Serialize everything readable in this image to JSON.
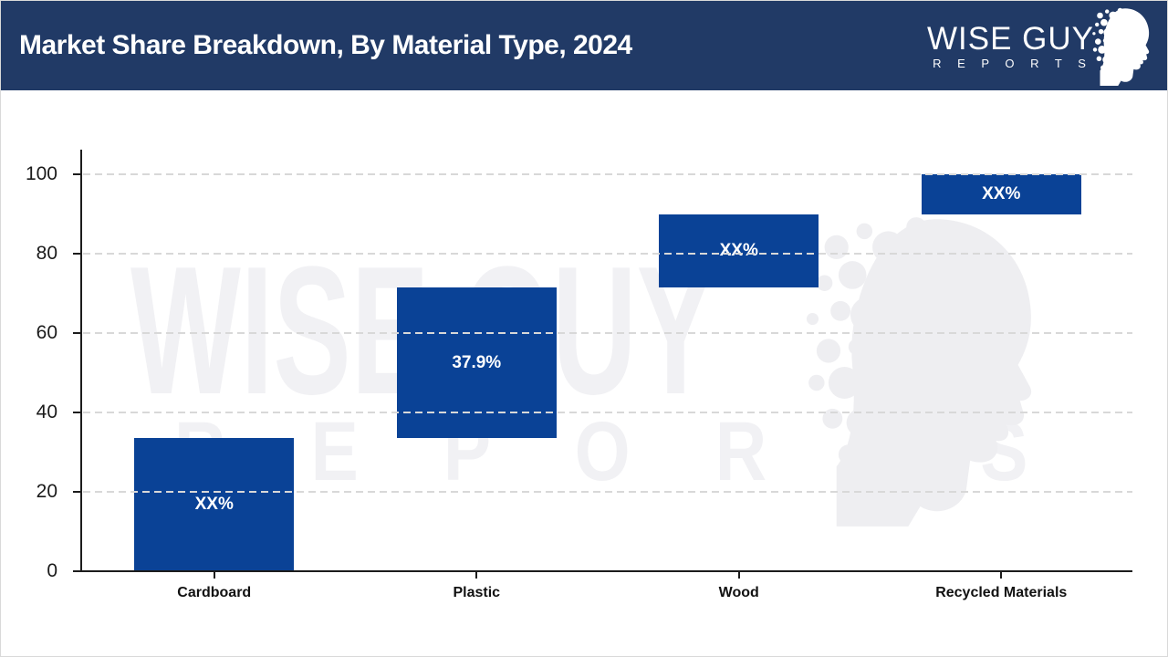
{
  "header": {
    "title": "Market Share Breakdown, By Material Type, 2024",
    "logo": {
      "line1": "WISE GUY",
      "line2": "R E P O R T S"
    }
  },
  "watermark": {
    "line1": "WISE GUY",
    "line2": "R E P O R T S"
  },
  "colors": {
    "header_bg": "#213a66",
    "bar": "#0a4296",
    "grid": "#d8d8d8",
    "axis": "#1c1c1c",
    "bar_label_text": "#ffffff",
    "watermark": "#f1f1f4",
    "watermark_face": "#eeeef1"
  },
  "chart_data": {
    "type": "bar",
    "subtype": "waterfall",
    "title": "Market Share Breakdown, By Material Type, 2024",
    "categories": [
      "Cardboard",
      "Plastic",
      "Wood",
      "Recycled Materials"
    ],
    "segments": [
      {
        "category": "Cardboard",
        "start": 0,
        "end": 33.5,
        "label": "XX%"
      },
      {
        "category": "Plastic",
        "start": 33.5,
        "end": 71.4,
        "label": "37.9%"
      },
      {
        "category": "Wood",
        "start": 71.4,
        "end": 90,
        "label": "XX%"
      },
      {
        "category": "Recycled Materials",
        "start": 90,
        "end": 100,
        "label": "XX%"
      }
    ],
    "yticks": [
      0,
      20,
      40,
      60,
      80,
      100
    ],
    "ylim": [
      0,
      100
    ],
    "xlabel": "",
    "ylabel": "",
    "grid": "dashed-horizontal",
    "legend": "none"
  }
}
